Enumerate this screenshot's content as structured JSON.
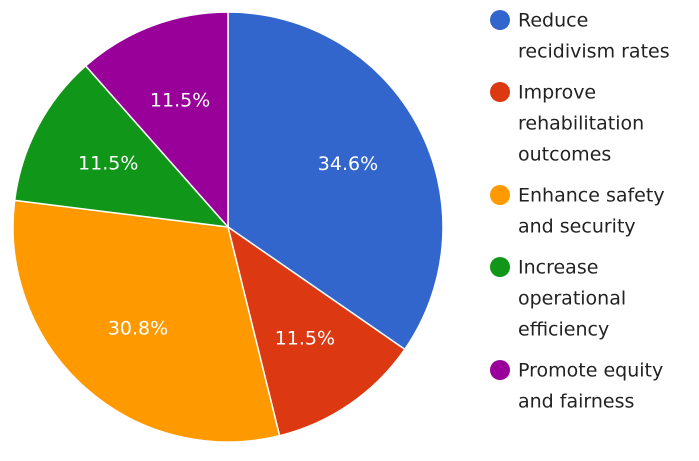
{
  "chart_data": {
    "type": "pie",
    "title": "",
    "slices": [
      {
        "label": "Reduce recidivism rates",
        "legend_lines": [
          "Reduce",
          "recidivism rates"
        ],
        "value": 34.6,
        "display": "34.6%",
        "color": "#3366cc"
      },
      {
        "label": "Improve rehabilitation outcomes",
        "legend_lines": [
          "Improve",
          "rehabilitation",
          "outcomes"
        ],
        "value": 11.5,
        "display": "11.5%",
        "color": "#dc3912"
      },
      {
        "label": "Enhance safety and security",
        "legend_lines": [
          "Enhance safety",
          "and security"
        ],
        "value": 30.8,
        "display": "30.8%",
        "color": "#ff9900"
      },
      {
        "label": "Increase operational efficiency",
        "legend_lines": [
          "Increase",
          "operational",
          "efficiency"
        ],
        "value": 11.5,
        "display": "11.5%",
        "color": "#109618"
      },
      {
        "label": "Promote equity and fairness",
        "legend_lines": [
          "Promote equity",
          "and fairness"
        ],
        "value": 11.5,
        "display": "11.5%",
        "color": "#990099"
      }
    ],
    "legend_position": "right",
    "start_angle": "12 o'clock",
    "direction": "clockwise"
  }
}
